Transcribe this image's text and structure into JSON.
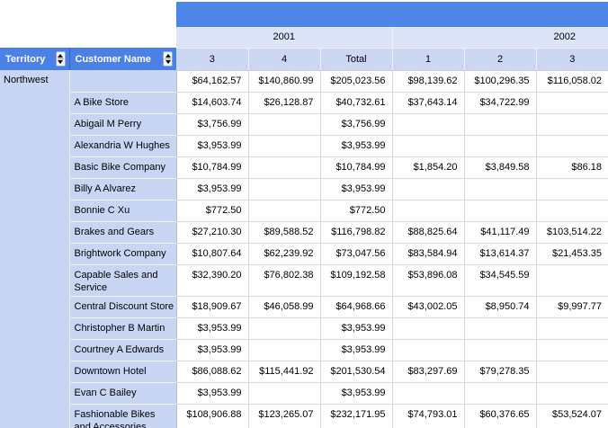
{
  "report": {
    "territory_column_header": "Territory",
    "customer_column_header": "Customer Name",
    "sort_icon": "sort-ascending-descending-arrows",
    "year_groups": [
      {
        "label": "2001",
        "columns": [
          "3",
          "4",
          "Total"
        ]
      },
      {
        "label": "2002",
        "columns": [
          "1",
          "2",
          "3"
        ]
      }
    ],
    "territory_group": "Northwest",
    "rows": [
      {
        "name": "",
        "values": [
          "$64,162.57",
          "$140,860.99",
          "$205,023.56",
          "$98,139.62",
          "$100,296.35",
          "$116,058.02"
        ]
      },
      {
        "name": "A Bike Store",
        "values": [
          "$14,603.74",
          "$26,128.87",
          "$40,732.61",
          "$37,643.14",
          "$34,722.99",
          ""
        ]
      },
      {
        "name": "Abigail M Perry",
        "values": [
          "$3,756.99",
          "",
          "$3,756.99",
          "",
          "",
          ""
        ]
      },
      {
        "name": "Alexandria W Hughes",
        "values": [
          "$3,953.99",
          "",
          "$3,953.99",
          "",
          "",
          ""
        ]
      },
      {
        "name": "Basic Bike Company",
        "values": [
          "$10,784.99",
          "",
          "$10,784.99",
          "$1,854.20",
          "$3,849.58",
          "$86.18"
        ]
      },
      {
        "name": "Billy A Alvarez",
        "values": [
          "$3,953.99",
          "",
          "$3,953.99",
          "",
          "",
          ""
        ]
      },
      {
        "name": "Bonnie C Xu",
        "values": [
          "$772.50",
          "",
          "$772.50",
          "",
          "",
          ""
        ]
      },
      {
        "name": "Brakes and Gears",
        "values": [
          "$27,210.30",
          "$89,588.52",
          "$116,798.82",
          "$88,825.64",
          "$41,117.49",
          "$103,514.22"
        ]
      },
      {
        "name": "Brightwork Company",
        "values": [
          "$10,807.64",
          "$62,239.92",
          "$73,047.56",
          "$83,584.94",
          "$13,614.37",
          "$21,453.35"
        ]
      },
      {
        "name": "Capable Sales and Service",
        "values": [
          "$32,390.20",
          "$76,802.38",
          "$109,192.58",
          "$53,896.08",
          "$34,545.59",
          ""
        ]
      },
      {
        "name": "Central Discount Store",
        "values": [
          "$18,909.67",
          "$46,058.99",
          "$64,968.66",
          "$43,002.05",
          "$8,950.74",
          "$9,997.77"
        ]
      },
      {
        "name": "Christopher B Martin",
        "values": [
          "$3,953.99",
          "",
          "$3,953.99",
          "",
          "",
          ""
        ]
      },
      {
        "name": "Courtney A Edwards",
        "values": [
          "$3,953.99",
          "",
          "$3,953.99",
          "",
          "",
          ""
        ]
      },
      {
        "name": "Downtown Hotel",
        "values": [
          "$86,088.62",
          "$115,441.92",
          "$201,530.54",
          "$83,297.69",
          "$79,278.35",
          ""
        ]
      },
      {
        "name": "Evan C Bailey",
        "values": [
          "$3,953.99",
          "",
          "$3,953.99",
          "",
          "",
          ""
        ]
      },
      {
        "name": "Fashionable Bikes and Accessories",
        "values": [
          "$108,906.88",
          "$123,265.07",
          "$232,171.95",
          "$74,793.01",
          "$60,376.65",
          "$53,524.07"
        ]
      }
    ],
    "colors": {
      "band_blue": "#4e86e8",
      "header_blue": "#4b80e5",
      "year_row_bg": "#dce4f8",
      "column_header_bg": "#cbd7f3",
      "row_header_bg": "#c9d6f3",
      "grid_line": "#d7d7d7",
      "cell_bg": "#ffffff"
    }
  }
}
